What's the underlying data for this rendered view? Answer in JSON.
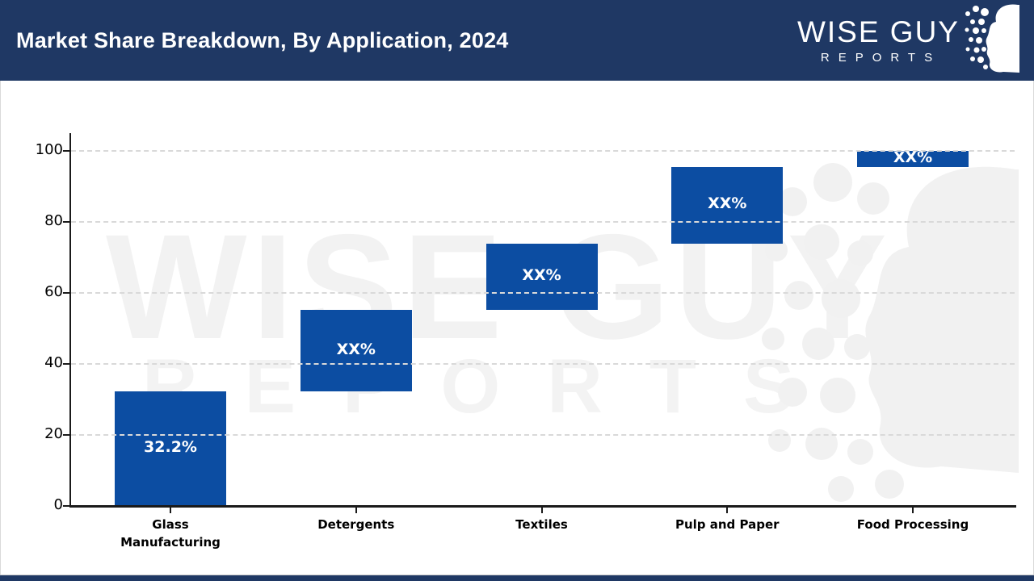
{
  "header": {
    "title": "Market Share Breakdown, By Application, 2024",
    "logo": {
      "line1": "WISE GUY",
      "line2": "REPORTS"
    }
  },
  "watermark": {
    "line1": "WISE GUY",
    "line2": "REPORTS"
  },
  "colors": {
    "header_bg": "#1F3864",
    "bar": "#0C4DA2",
    "bar_label": "#FFFFFF",
    "gridline": "#D9D9D9",
    "axis": "#1A1A1A",
    "watermark": "#F2F2F2",
    "footer_bar": "#1F3864"
  },
  "chart_data": {
    "type": "bar",
    "subtype": "waterfall",
    "title": "Market Share Breakdown, By Application, 2024",
    "categories": [
      "Glass Manufacturing",
      "Detergents",
      "Textiles",
      "Pulp and Paper",
      "Food Processing"
    ],
    "bars": [
      {
        "category": "Glass Manufacturing",
        "label": "32.2%",
        "start": 0,
        "end": 32.2
      },
      {
        "category": "Detergents",
        "label": "XX%",
        "start": 32.2,
        "end": 55.2
      },
      {
        "category": "Textiles",
        "label": "XX%",
        "start": 55.2,
        "end": 73.9
      },
      {
        "category": "Pulp and Paper",
        "label": "XX%",
        "start": 73.9,
        "end": 95.5
      },
      {
        "category": "Food Processing",
        "label": "XX%",
        "start": 95.5,
        "end": 100
      }
    ],
    "yticks": [
      0,
      20,
      40,
      60,
      80,
      100
    ],
    "ylim": [
      0,
      100
    ],
    "xlabel": "",
    "ylabel": "",
    "grid": "horizontal-dashed",
    "legend": "none"
  }
}
